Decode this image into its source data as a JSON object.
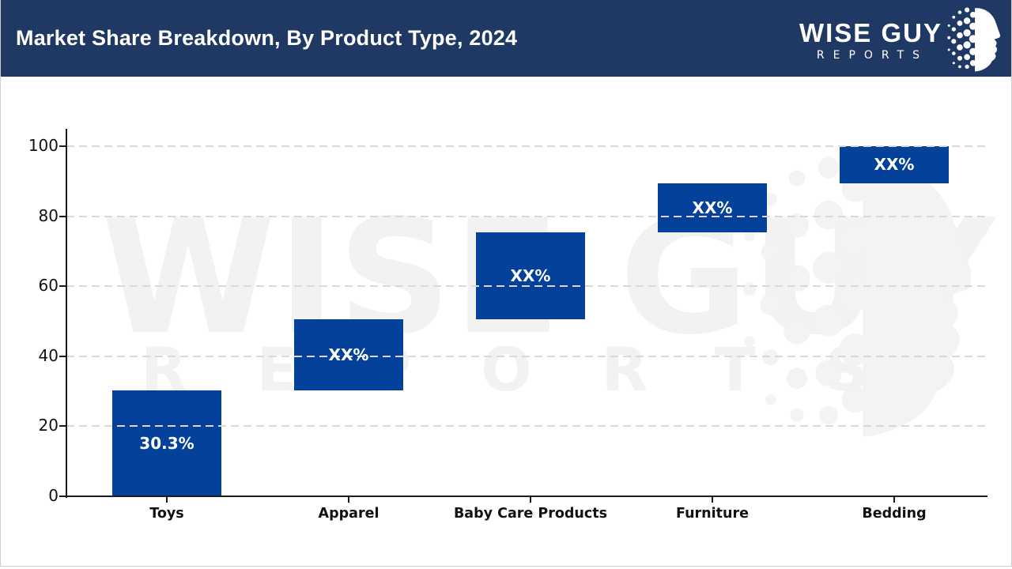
{
  "header": {
    "title": "Market Share Breakdown, By Product Type, 2024",
    "logo": {
      "wordmark": "WISE GUY",
      "subtext": "REPORTS"
    }
  },
  "watermark": {
    "wordmark": "WISE GUY",
    "subtext": "REPORTS"
  },
  "chart_data": {
    "type": "bar",
    "subtype": "waterfall",
    "title": "Market Share Breakdown, By Product Type, 2024",
    "categories": [
      "Toys",
      "Apparel",
      "Baby Care Products",
      "Furniture",
      "Bedding"
    ],
    "series": [
      {
        "name": "Market share (%)",
        "starts": [
          0,
          30.3,
          50.5,
          75.5,
          89.5
        ],
        "ends": [
          30.3,
          50.5,
          75.5,
          89.5,
          100
        ],
        "values": [
          30.3,
          20.2,
          25.0,
          14.0,
          10.5
        ]
      }
    ],
    "bar_labels": [
      "30.3%",
      "XX%",
      "XX%",
      "XX%",
      "XX%"
    ],
    "ylim": [
      0,
      100
    ],
    "yticks": [
      0,
      20,
      40,
      60,
      80,
      100
    ],
    "xlabel": "",
    "ylabel": "",
    "grid": "horizontal-dashed",
    "legend": "none",
    "bar_color": "#04419b",
    "bar_label_color": "#ffffff"
  },
  "colors": {
    "header_bg": "#1f3864",
    "page_bg": "#ffffff",
    "axis": "#1a1a1a",
    "grid": "#d9d9d9",
    "watermark": "#f2f2f2",
    "watermark_face": "#f3f3f3"
  },
  "icons": {
    "logo_face": "dotted-head-profile-icon"
  }
}
